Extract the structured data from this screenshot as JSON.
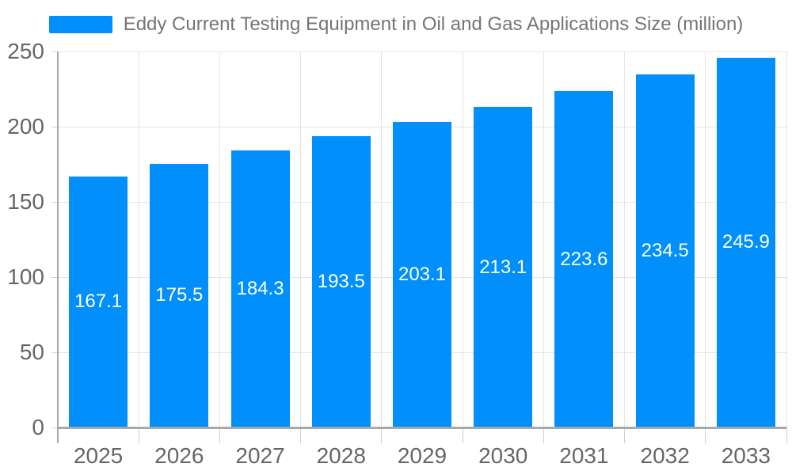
{
  "legend": {
    "series_label": "Eddy Current Testing Equipment in Oil and Gas Applications Size (million)"
  },
  "chart_data": {
    "type": "bar",
    "title": "Eddy Current Testing Equipment in Oil and Gas Applications Size (million)",
    "categories": [
      "2025",
      "2026",
      "2027",
      "2028",
      "2029",
      "2030",
      "2031",
      "2032",
      "2033"
    ],
    "series": [
      {
        "name": "Eddy Current Testing Equipment in Oil and Gas Applications Size (million)",
        "values": [
          167.1,
          175.5,
          184.3,
          193.5,
          203.1,
          213.1,
          223.6,
          234.5,
          245.9
        ]
      }
    ],
    "value_labels": [
      "167.1",
      "175.5",
      "184.3",
      "193.5",
      "203.1",
      "213.1",
      "223.6",
      "234.5",
      "245.9"
    ],
    "xlabel": "",
    "ylabel": "",
    "ylim": [
      0,
      250
    ],
    "yticks": [
      0,
      50,
      100,
      150,
      200,
      250
    ],
    "grid": true,
    "legend_position": "top",
    "value_label_position": "center",
    "colors": {
      "bar": "#008FFB",
      "grid": "#e4e4e4",
      "axis": "#a8a8a8",
      "tick": "#cfcfcf",
      "tick_label": "#666666",
      "title": "#757575",
      "value_label": "#ffffff",
      "background": "#ffffff"
    }
  }
}
